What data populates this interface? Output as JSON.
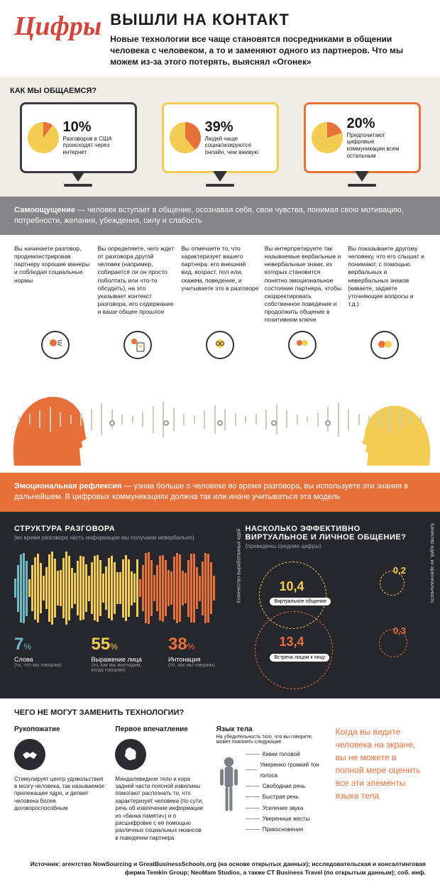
{
  "brand": "Цифры",
  "header": {
    "title": "ВЫШЛИ НА КОНТАКТ",
    "lead": "Новые технологии все чаще становятся посредниками в общении человека с человеком, а то и заменяют одного из партнеров. Что мы можем из-за этого потерять, выяснял «Огонек»"
  },
  "section1": {
    "heading": "КАК МЫ ОБЩАЕМСЯ?",
    "monitors": [
      {
        "pct": "10%",
        "desc": "Разговоров в США происходят через интернет",
        "value": 10,
        "border": "#3a3a42",
        "pie_fg": "#e8703a",
        "pie_bg": "#f3cd53"
      },
      {
        "pct": "39%",
        "desc": "Людей чаще социализируются онлайн, чем вживую",
        "value": 39,
        "border": "#f3cd53",
        "pie_fg": "#e8703a",
        "pie_bg": "#f3cd53"
      },
      {
        "pct": "20%",
        "desc": "Предпочитают цифровые коммуникации всем остальным",
        "value": 20,
        "border": "#e8703a",
        "pie_fg": "#e8703a",
        "pie_bg": "#f3cd53"
      }
    ]
  },
  "graybar": {
    "bold": "Самоощущение",
    "text": " — человек вступает в общение, осознавая себя, свои чувства, понимая свою мотивацию, потребности, желания, убеждения, силу и слабость"
  },
  "steps": [
    "Вы начинаете разговор, продемонстрировав партнеру хорошие манеры и соблюдая социальные нормы",
    "Вы определяете, чего ждет от разговора другой человек (например, собирается ли он просто поболтать или что-то обсудить), на это указывает контекст разговора, его содержание и ваше общее прошлое",
    "Вы отмечаете то, что характеризует вашего партнера: его внешний вид, возраст, пол или, скажем, поведение, и учитываете это в разговоре",
    "Вы интерпретируете так называемые вербальные и невербальные знаки, из которых становится понятно эмоциональное состояние партнера, чтобы скорректировать собственное поведение и продолжить общение в позитивном ключе",
    "Вы показываете другому человеку, что его слышат и понимают, с помощью вербальных и невербальных знаков (киваете, задаете уточняющие вопросы и т.д.)"
  ],
  "orangebar": {
    "bold": "Эмоциональная рефлексия",
    "text": " — узнав больше о человеке во время разговора, вы используете эти знания в дальнейшем. В цифровых коммуникациях должна так или иначе учитываться эта модель"
  },
  "dark": {
    "left": {
      "heading": "СТРУКТУРА РАЗГОВОРА",
      "sub": "(во время разговора часть информации мы получаем невербально)",
      "stats": [
        {
          "v": "7",
          "p": "%",
          "label": "Слова",
          "sub": "(то, что мы говорим)",
          "color": "#6fb8c4"
        },
        {
          "v": "55",
          "p": "%",
          "label": "Выражение лица",
          "sub": "(то, как мы выглядим, когда говорим)",
          "color": "#f3cd53"
        },
        {
          "v": "38",
          "p": "%",
          "label": "Интонация",
          "sub": "(то, как мы говорим)",
          "color": "#e8703a"
        }
      ],
      "wave_colors": [
        "#6fb8c4",
        "#f3cd53",
        "#e8703a"
      ]
    },
    "right": {
      "heading": "НАСКОЛЬКО ЭФФЕКТИВНО ВИРТУАЛЬНОЕ И ЛИЧНОЕ ОБЩЕНИЕ?",
      "sub": "(приведены средние цифры)",
      "ylabel_left": "Количество выработанных идей",
      "ylabel_right": "Качество идей, их оригинальность",
      "circles": [
        {
          "num": "10,4",
          "label": "Виртуальное общение",
          "num2": "0,2",
          "color": "#f3cd53"
        },
        {
          "num": "13,4",
          "label": "Встреча лицом к лицу",
          "num2": "0,3",
          "color": "#e8703a"
        }
      ]
    }
  },
  "section4": {
    "heading": "ЧЕГО НЕ МОГУТ ЗАМЕНИТЬ ТЕХНОЛОГИИ?",
    "handshake": {
      "title": "Рукопожатие",
      "text": "Стимулирует центр удовольствия в мозгу человека, так называемое прилежащее ядро, и делает человека более договороспособным"
    },
    "impression": {
      "title": "Первое впечатление",
      "text": "Миндалевидное тело и кора задней части поясной извилины помогают распознать то, что характеризует человека (по сути, речь об извлечении информации из «банка памяти») и о расшифровке с ее помощью различных социальных нюансов в поведении партнера"
    },
    "body": {
      "title": "Язык тела",
      "sub": "На убедительность того, что вы говорите, может повлиять следующее",
      "items": [
        "Кивки головой",
        "Умеренно громкий тон голоса",
        "Свободная речь",
        "Быстрая речь",
        "Усиление звука",
        "Уверенные жесты",
        "Прикосновения"
      ]
    },
    "orange": "Когда вы видите человека на экране, вы не можете в полной мере оценить все эти элементы языка тела"
  },
  "source": "Источник: агентство NowSourcing и GreatBusinessSchools.org (на основе открытых данных); исследовательская и консалтинговая фирма Temkin Group; NeoMam Studios, а также CT Business Travel (по открытым данным); соб. инф.",
  "colors": {
    "orange": "#e8703a",
    "yellow": "#f3cd53",
    "teal": "#6fb8c4",
    "dark": "#26262d",
    "gray": "#86858a",
    "red": "#d4453d",
    "beige": "#f0ede6"
  }
}
